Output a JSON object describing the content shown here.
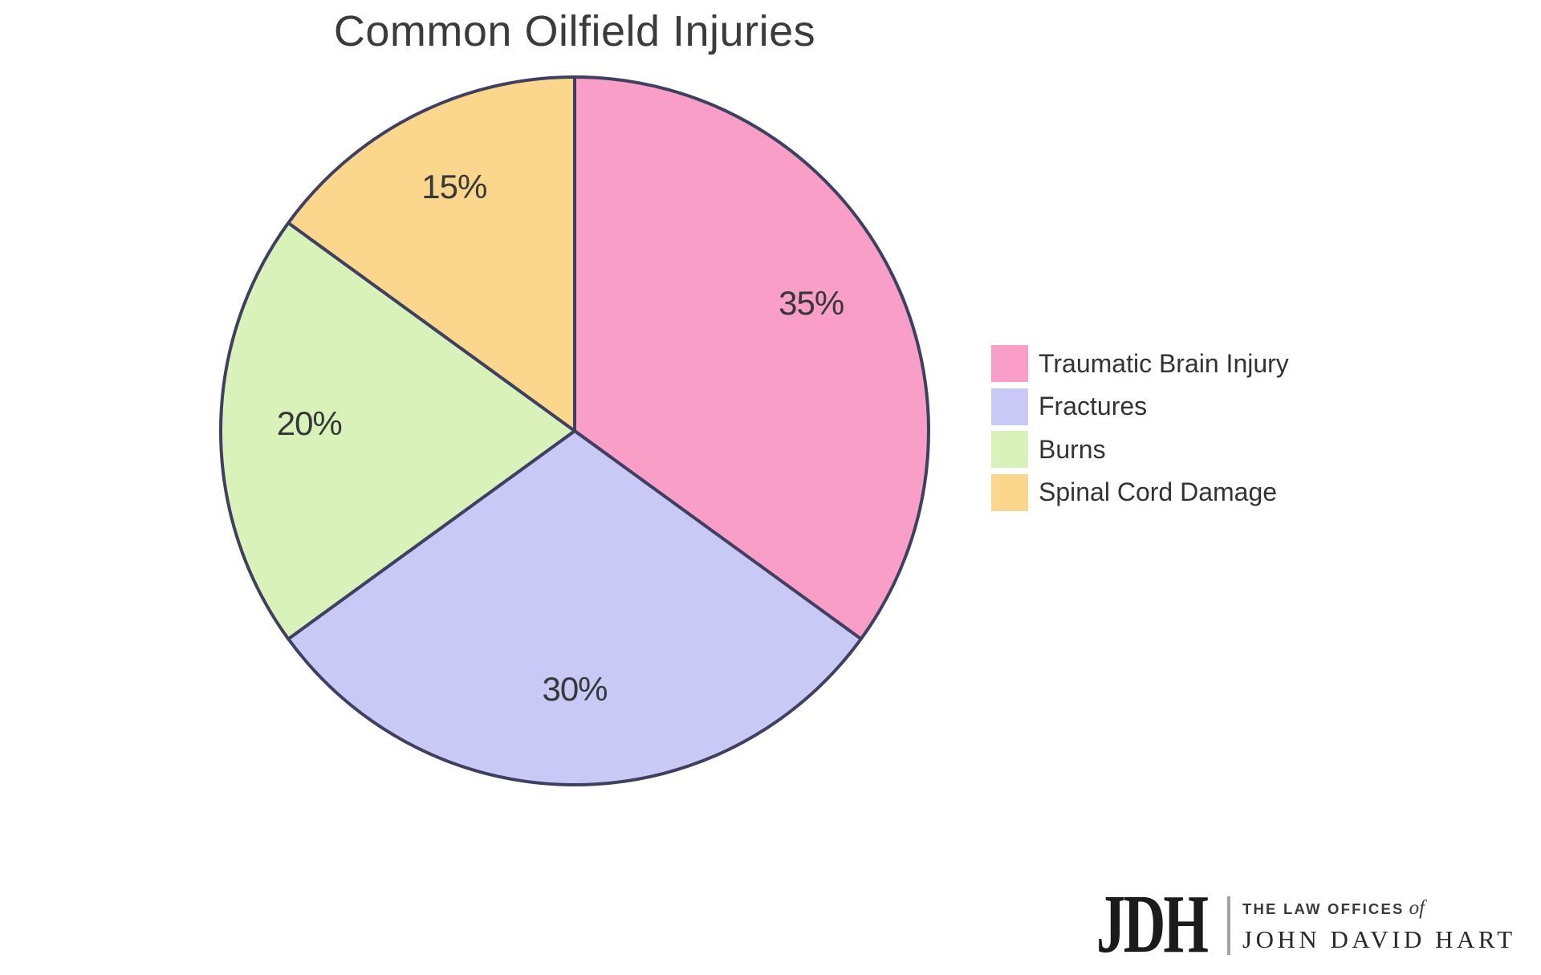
{
  "chart_data": {
    "type": "pie",
    "title": "Common Oilfield Injuries",
    "unit": "percent",
    "direction": "clockwise",
    "start_angle": "12-oclock",
    "legend_position": "right",
    "stroke_color": "#3f4061",
    "label_color": "#383838",
    "slices": [
      {
        "label": "Traumatic Brain Injury",
        "value": 35,
        "pct_label": "35%",
        "color": "#f99ec7"
      },
      {
        "label": "Fractures",
        "value": 30,
        "pct_label": "30%",
        "color": "#c9c9f6"
      },
      {
        "label": "Burns",
        "value": 20,
        "pct_label": "20%",
        "color": "#d8f2ba"
      },
      {
        "label": "Spinal Cord Damage",
        "value": 15,
        "pct_label": "15%",
        "color": "#fbd78d"
      }
    ]
  },
  "logo": {
    "monogram": "JDH",
    "tagline_prefix": "THE LAW OFFICES",
    "tagline_of": "of",
    "name": "JOHN DAVID HART"
  }
}
